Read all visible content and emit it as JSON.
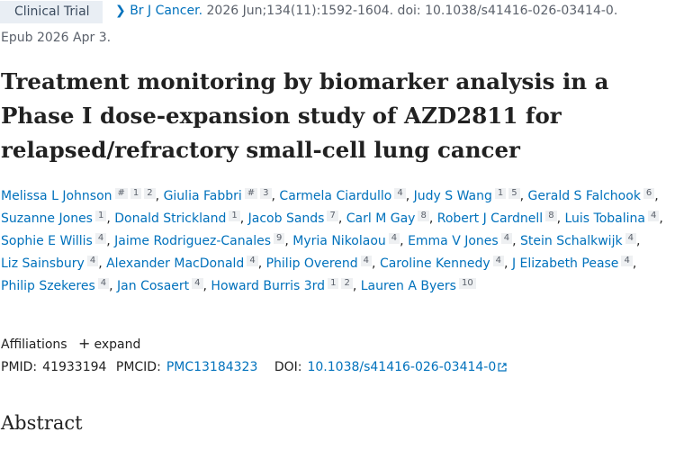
{
  "badge": "Clinical Trial",
  "citation": {
    "journal": "Br J Cancer.",
    "details": "2026 Jun;134(11):1592-1604. doi: 10.1038/s41416-026-03414-0.",
    "epub": "Epub 2026 Apr 3."
  },
  "title": "Treatment monitoring by biomarker analysis in a Phase I dose-expansion study of AZD2811 for relapsed/refractory small-cell lung cancer",
  "authors": [
    {
      "name": "Melissa L Johnson",
      "sups": [
        "#",
        "1",
        "2"
      ]
    },
    {
      "name": "Giulia Fabbri",
      "sups": [
        "#",
        "3"
      ]
    },
    {
      "name": "Carmela Ciardullo",
      "sups": [
        "4"
      ]
    },
    {
      "name": "Judy S Wang",
      "sups": [
        "1",
        "5"
      ]
    },
    {
      "name": "Gerald S Falchook",
      "sups": [
        "6"
      ]
    },
    {
      "name": "Suzanne Jones",
      "sups": [
        "1"
      ]
    },
    {
      "name": "Donald Strickland",
      "sups": [
        "1"
      ]
    },
    {
      "name": "Jacob Sands",
      "sups": [
        "7"
      ]
    },
    {
      "name": "Carl M Gay",
      "sups": [
        "8"
      ]
    },
    {
      "name": "Robert J Cardnell",
      "sups": [
        "8"
      ]
    },
    {
      "name": "Luis Tobalina",
      "sups": [
        "4"
      ]
    },
    {
      "name": "Sophie E Willis",
      "sups": [
        "4"
      ]
    },
    {
      "name": "Jaime Rodriguez-Canales",
      "sups": [
        "9"
      ]
    },
    {
      "name": "Myria Nikolaou",
      "sups": [
        "4"
      ]
    },
    {
      "name": "Emma V Jones",
      "sups": [
        "4"
      ]
    },
    {
      "name": "Stein Schalkwijk",
      "sups": [
        "4"
      ]
    },
    {
      "name": "Liz Sainsbury",
      "sups": [
        "4"
      ]
    },
    {
      "name": "Alexander MacDonald",
      "sups": [
        "4"
      ]
    },
    {
      "name": "Philip Overend",
      "sups": [
        "4"
      ]
    },
    {
      "name": "Caroline Kennedy",
      "sups": [
        "4"
      ]
    },
    {
      "name": "J Elizabeth Pease",
      "sups": [
        "4"
      ]
    },
    {
      "name": "Philip Szekeres",
      "sups": [
        "4"
      ]
    },
    {
      "name": "Jan Cosaert",
      "sups": [
        "4"
      ]
    },
    {
      "name": "Howard Burris 3rd",
      "sups": [
        "1",
        "2"
      ]
    },
    {
      "name": "Lauren A Byers",
      "sups": [
        "10"
      ]
    }
  ],
  "affiliations": {
    "label": "Affiliations",
    "toggle": "expand"
  },
  "ids": {
    "pmid_label": "PMID:",
    "pmid": "41933194",
    "pmcid_label": "PMCID:",
    "pmcid": "PMC13184323",
    "doi_label": "DOI:",
    "doi": "10.1038/s41416-026-03414-0"
  },
  "abstract_heading": "Abstract"
}
